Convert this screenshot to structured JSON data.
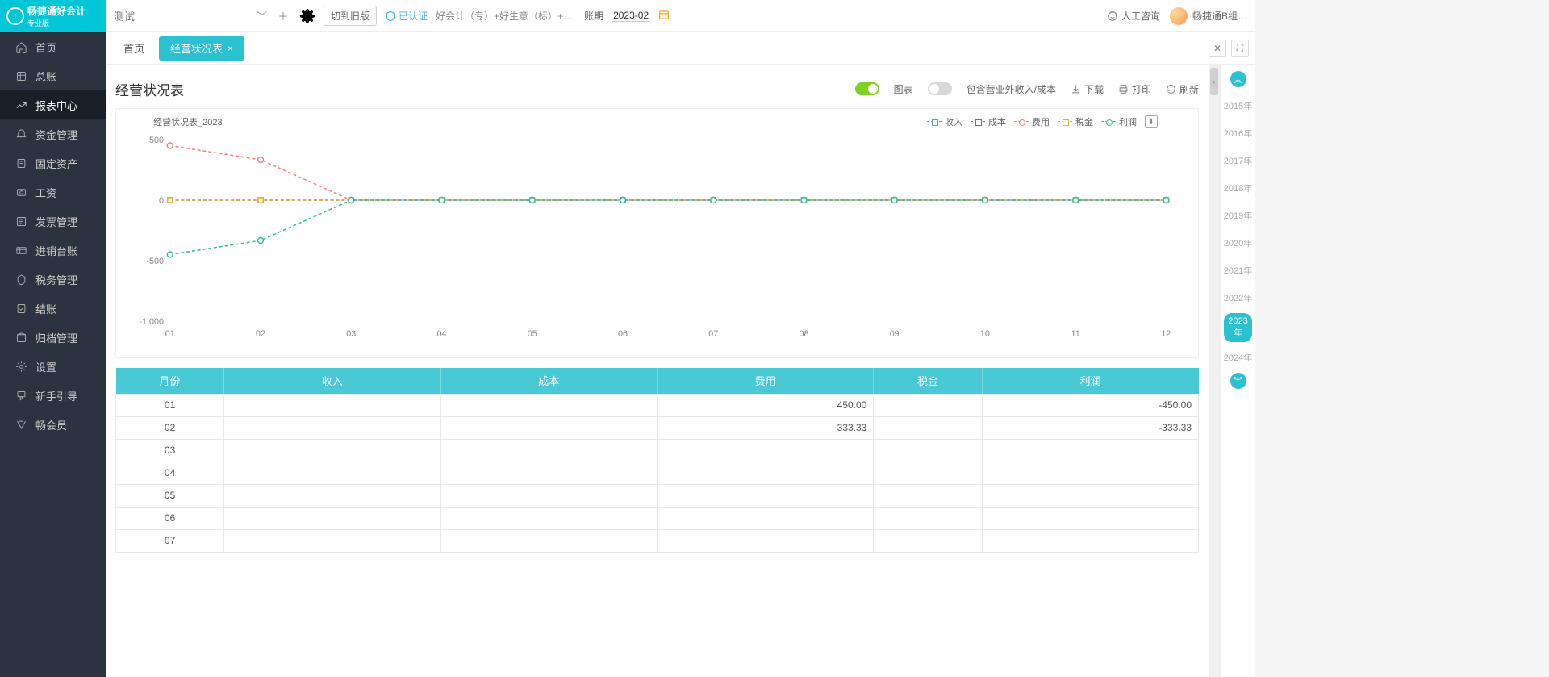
{
  "brand": {
    "name": "畅捷通好会计",
    "edition": "专业版"
  },
  "sidebar": {
    "items": [
      {
        "label": "首页"
      },
      {
        "label": "总账"
      },
      {
        "label": "报表中心"
      },
      {
        "label": "资金管理"
      },
      {
        "label": "固定资产"
      },
      {
        "label": "工资"
      },
      {
        "label": "发票管理"
      },
      {
        "label": "进销台账"
      },
      {
        "label": "税务管理"
      },
      {
        "label": "结账"
      },
      {
        "label": "归档管理"
      },
      {
        "label": "设置"
      },
      {
        "label": "新手引导"
      },
      {
        "label": "畅会员"
      }
    ],
    "active_index": 2
  },
  "topbar": {
    "company": "测试",
    "switch_old_label": "切到旧版",
    "cert_label": "已认证",
    "plan_text": "好会计（专）+好生意（标）+…",
    "period_label": "账期",
    "period_value": "2023-02",
    "consult_label": "人工咨询",
    "user_name": "畅捷通B组…"
  },
  "tabs": {
    "items": [
      {
        "label": "首页",
        "closable": false
      },
      {
        "label": "经营状况表",
        "closable": true
      }
    ],
    "active_index": 1
  },
  "page": {
    "title": "经营状况表",
    "toggles": {
      "chart_label": "图表",
      "chart_on": true,
      "extra_label": "包含营业外收入/成本",
      "extra_on": false
    },
    "tools": {
      "download": "下载",
      "print": "打印",
      "refresh": "刷新"
    }
  },
  "chart": {
    "title": "经营状况表_2023",
    "type": "line",
    "x_categories": [
      "01",
      "02",
      "03",
      "04",
      "05",
      "06",
      "07",
      "08",
      "09",
      "10",
      "11",
      "12"
    ],
    "y_ticks": [
      500,
      0,
      -500,
      -1000
    ],
    "ylim": [
      -1000,
      500
    ],
    "series": [
      {
        "key": "income",
        "label": "收入",
        "color": "#5b9bd5",
        "marker": "square",
        "values": [
          0,
          0,
          0,
          0,
          0,
          0,
          0,
          0,
          0,
          0,
          0,
          0
        ]
      },
      {
        "key": "cost",
        "label": "成本",
        "color": "#8064a2",
        "marker": "square",
        "values": [
          0,
          0,
          0,
          0,
          0,
          0,
          0,
          0,
          0,
          0,
          0,
          0
        ]
      },
      {
        "key": "expense",
        "label": "费用",
        "color": "#ef7f7f",
        "marker": "circle",
        "values": [
          450,
          333.33,
          0,
          0,
          0,
          0,
          0,
          0,
          0,
          0,
          0,
          0
        ]
      },
      {
        "key": "tax",
        "label": "税金",
        "color": "#e6b335",
        "marker": "square",
        "values": [
          0,
          0,
          0,
          0,
          0,
          0,
          0,
          0,
          0,
          0,
          0,
          0
        ]
      },
      {
        "key": "profit",
        "label": "利润",
        "color": "#2dbd9b",
        "marker": "circle",
        "values": [
          -450,
          -333.33,
          0,
          0,
          0,
          0,
          0,
          0,
          0,
          0,
          0,
          0
        ]
      }
    ],
    "grid_color": "#eeeeee",
    "axis_color": "#cccccc",
    "background": "#ffffff",
    "label_fontsize": 11,
    "label_color": "#888888"
  },
  "table": {
    "columns": [
      "月份",
      "收入",
      "成本",
      "费用",
      "税金",
      "利润"
    ],
    "col_widths_pct": [
      10,
      20,
      20,
      20,
      10,
      20
    ],
    "col_align": [
      "center",
      "right",
      "right",
      "right",
      "right",
      "right"
    ],
    "rows": [
      {
        "month": "01",
        "income": "",
        "cost": "",
        "expense": "450.00",
        "tax": "",
        "profit": "-450.00"
      },
      {
        "month": "02",
        "income": "",
        "cost": "",
        "expense": "333.33",
        "tax": "",
        "profit": "-333.33"
      },
      {
        "month": "03",
        "income": "",
        "cost": "",
        "expense": "",
        "tax": "",
        "profit": ""
      },
      {
        "month": "04",
        "income": "",
        "cost": "",
        "expense": "",
        "tax": "",
        "profit": ""
      },
      {
        "month": "05",
        "income": "",
        "cost": "",
        "expense": "",
        "tax": "",
        "profit": ""
      },
      {
        "month": "06",
        "income": "",
        "cost": "",
        "expense": "",
        "tax": "",
        "profit": ""
      },
      {
        "month": "07",
        "income": "",
        "cost": "",
        "expense": "",
        "tax": "",
        "profit": ""
      }
    ]
  },
  "year_rail": {
    "years": [
      "2015年",
      "2016年",
      "2017年",
      "2018年",
      "2019年",
      "2020年",
      "2021年",
      "2022年",
      "2023年",
      "2024年"
    ],
    "active_index": 8
  }
}
